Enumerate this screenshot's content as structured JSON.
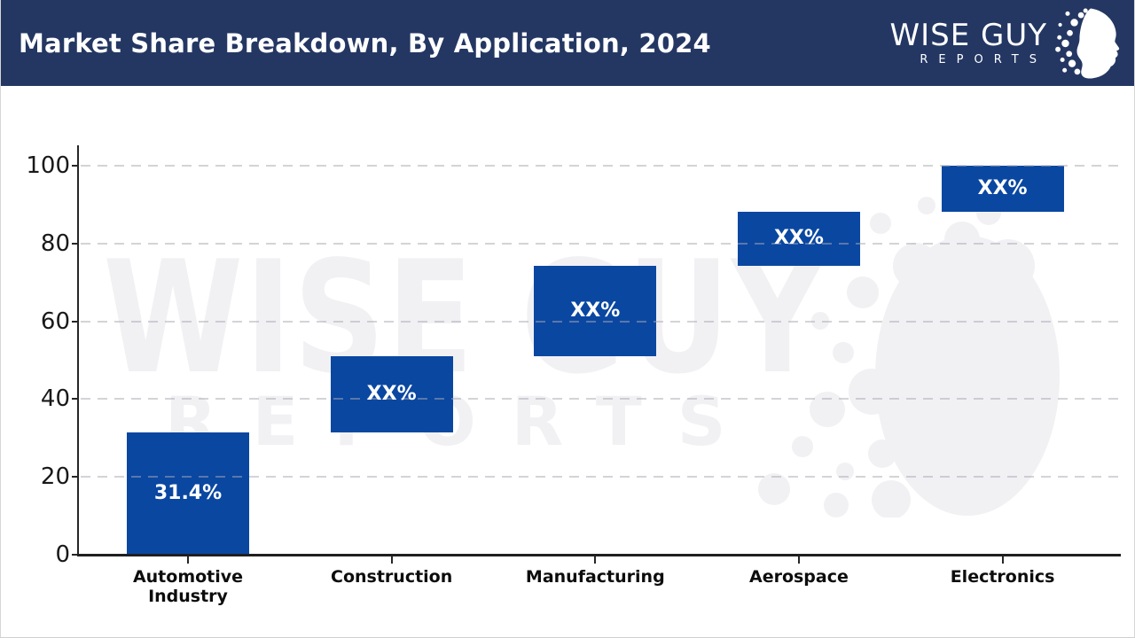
{
  "header": {
    "title": "Market Share Breakdown, By Application, 2024",
    "bg_color": "#243763",
    "logo": {
      "name": "WISE GUY",
      "subtitle": "REPORTS"
    }
  },
  "watermark": {
    "name": "WISE GUY",
    "subtitle": "REPORTS"
  },
  "chart_data": {
    "type": "bar",
    "subtype": "waterfall",
    "title": "Market Share Breakdown, By Application, 2024",
    "categories": [
      "Automotive\nIndustry",
      "Construction",
      "Manufacturing",
      "Aerospace",
      "Electronics"
    ],
    "segments": [
      {
        "category": "Automotive Industry",
        "start": 0,
        "end": 31.4,
        "label": "31.4%"
      },
      {
        "category": "Construction",
        "start": 31.4,
        "end": 51.0,
        "label": "XX%"
      },
      {
        "category": "Manufacturing",
        "start": 51.0,
        "end": 74.3,
        "label": "XX%"
      },
      {
        "category": "Aerospace",
        "start": 74.3,
        "end": 88.2,
        "label": "XX%"
      },
      {
        "category": "Electronics",
        "start": 88.2,
        "end": 100,
        "label": "XX%"
      }
    ],
    "xlabel": "",
    "ylabel": "",
    "ylim": [
      0,
      105
    ],
    "yticks": [
      0,
      20,
      40,
      60,
      80,
      100
    ],
    "grid": "horizontal dashed, drawn over bars",
    "legend": "none",
    "bar_color": "#0a47a1",
    "bar_label_color": "#ffffff",
    "axis_color": "#262626",
    "masked_label": "XX%"
  }
}
